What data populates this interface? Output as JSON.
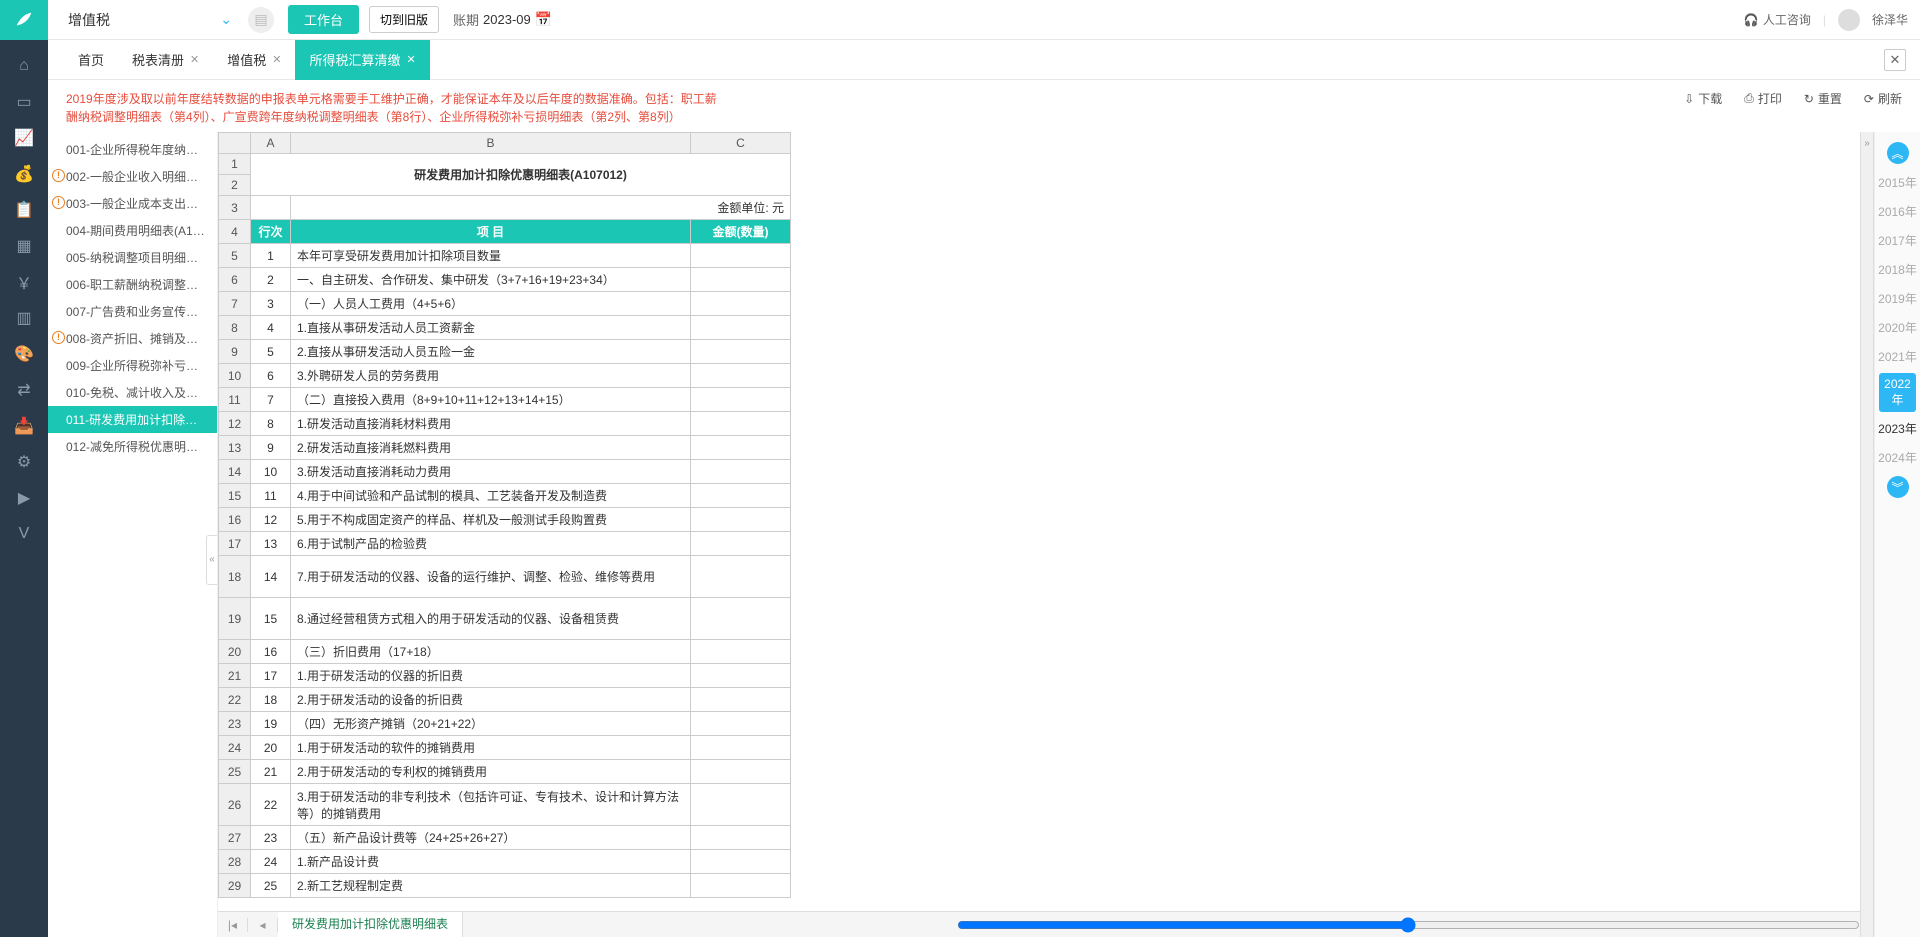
{
  "header": {
    "module": "增值税",
    "workbench": "工作台",
    "switchOld": "切到旧版",
    "periodLabel": "账期",
    "periodValue": "2023-09",
    "service": "人工咨询",
    "user": "徐泽华"
  },
  "tabs": {
    "items": [
      {
        "label": "首页",
        "closable": false,
        "active": false
      },
      {
        "label": "税表清册",
        "closable": true,
        "active": false
      },
      {
        "label": "增值税",
        "closable": true,
        "active": false
      },
      {
        "label": "所得税汇算清缴",
        "closable": true,
        "active": true
      }
    ]
  },
  "warning": "2019年度涉及取以前年度结转数据的申报表单元格需要手工维护正确，才能保证本年及以后年度的数据准确。包括：职工薪酬纳税调整明细表（第4列）、广宣费跨年度纳税调整明细表（第8行）、企业所得税弥补亏损明细表（第2列、第8列）",
  "toolbar": {
    "download": "下载",
    "print": "打印",
    "reset": "重置",
    "refresh": "刷新"
  },
  "tree": {
    "items": [
      {
        "label": "001-企业所得税年度纳税申…",
        "warn": false
      },
      {
        "label": "002-一般企业收入明细表(A…",
        "warn": true
      },
      {
        "label": "003-一般企业成本支出明细…",
        "warn": true
      },
      {
        "label": "004-期间费用明细表(A1040…",
        "warn": false
      },
      {
        "label": "005-纳税调整项目明细表(A1…",
        "warn": false
      },
      {
        "label": "006-职工薪酬纳税调整明细…",
        "warn": false
      },
      {
        "label": "007-广告费和业务宣传费跨…",
        "warn": false
      },
      {
        "label": "008-资产折旧、摊销及纳税…",
        "warn": true
      },
      {
        "label": "009-企业所得税弥补亏损明…",
        "warn": false
      },
      {
        "label": "010-免税、减计收入及加计…",
        "warn": false
      },
      {
        "label": "011-研发费用加计扣除优惠…",
        "warn": false,
        "active": true
      },
      {
        "label": "012-减免所得税优惠明细表(…",
        "warn": false
      }
    ]
  },
  "sheet": {
    "title": "研发费用加计扣除优惠明细表(A107012)",
    "unit": "金额单位: 元",
    "colHeaders": {
      "A": "行次",
      "B": "项    目",
      "C": "金额(数量)"
    },
    "tabName": "研发费用加计扣除优惠明细表",
    "abc": {
      "A": "A",
      "B": "B",
      "C": "C"
    },
    "rows": [
      {
        "n": "1",
        "text": "本年可享受研发费用加计扣除项目数量"
      },
      {
        "n": "2",
        "text": "一、自主研发、合作研发、集中研发（3+7+16+19+23+34）"
      },
      {
        "n": "3",
        "text": "（一）人员人工费用（4+5+6）"
      },
      {
        "n": "4",
        "text": "1.直接从事研发活动人员工资薪金"
      },
      {
        "n": "5",
        "text": "2.直接从事研发活动人员五险一金"
      },
      {
        "n": "6",
        "text": "3.外聘研发人员的劳务费用"
      },
      {
        "n": "7",
        "text": "（二）直接投入费用（8+9+10+11+12+13+14+15）"
      },
      {
        "n": "8",
        "text": "1.研发活动直接消耗材料费用"
      },
      {
        "n": "9",
        "text": "2.研发活动直接消耗燃料费用"
      },
      {
        "n": "10",
        "text": "3.研发活动直接消耗动力费用"
      },
      {
        "n": "11",
        "text": "4.用于中间试验和产品试制的模具、工艺装备开发及制造费"
      },
      {
        "n": "12",
        "text": "5.用于不构成固定资产的样品、样机及一般测试手段购置费"
      },
      {
        "n": "13",
        "text": "6.用于试制产品的检验费"
      },
      {
        "n": "14",
        "text": "7.用于研发活动的仪器、设备的运行维护、调整、检验、维修等费用",
        "tall": true
      },
      {
        "n": "15",
        "text": "8.通过经营租赁方式租入的用于研发活动的仪器、设备租赁费",
        "tall": true
      },
      {
        "n": "16",
        "text": "（三）折旧费用（17+18）"
      },
      {
        "n": "17",
        "text": "1.用于研发活动的仪器的折旧费"
      },
      {
        "n": "18",
        "text": "2.用于研发活动的设备的折旧费"
      },
      {
        "n": "19",
        "text": "（四）无形资产摊销（20+21+22）"
      },
      {
        "n": "20",
        "text": "1.用于研发活动的软件的摊销费用"
      },
      {
        "n": "21",
        "text": "2.用于研发活动的专利权的摊销费用"
      },
      {
        "n": "22",
        "text": "3.用于研发活动的非专利技术（包括许可证、专有技术、设计和计算方法等）的摊销费用",
        "tall": true
      },
      {
        "n": "23",
        "text": "（五）新产品设计费等（24+25+26+27）"
      },
      {
        "n": "24",
        "text": "1.新产品设计费"
      },
      {
        "n": "25",
        "text": "2.新工艺规程制定费"
      }
    ]
  },
  "years": {
    "list": [
      "2015年",
      "2016年",
      "2017年",
      "2018年",
      "2019年",
      "2020年",
      "2021年",
      "2022年",
      "2023年",
      "2024年"
    ],
    "active": "2022年",
    "enabled": [
      "2022年",
      "2023年"
    ]
  },
  "colors": {
    "teal": "#1bc6b4",
    "blue": "#2db7f5",
    "dark": "#2b3a4a",
    "warn": "#e74c3c"
  }
}
